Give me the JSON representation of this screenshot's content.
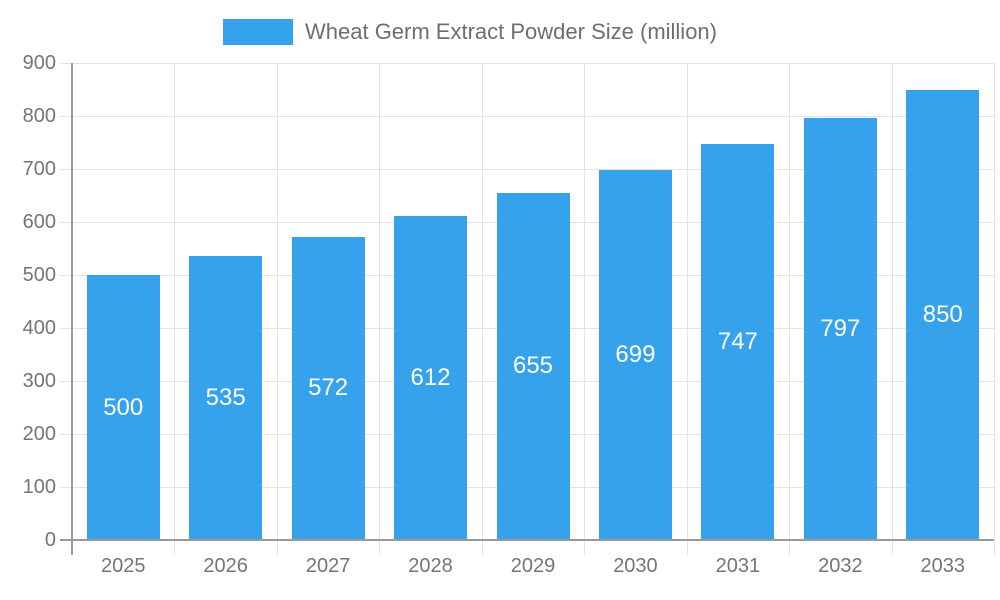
{
  "legend": {
    "label": "Wheat Germ Extract Powder Size (million)"
  },
  "chart_data": {
    "type": "bar",
    "title": "Wheat Germ Extract Powder Size (million)",
    "series_name": "Wheat Germ Extract Powder Size (million)",
    "categories": [
      "2025",
      "2026",
      "2027",
      "2028",
      "2029",
      "2030",
      "2031",
      "2032",
      "2033"
    ],
    "values": [
      500,
      535,
      572,
      612,
      655,
      699,
      747,
      797,
      850
    ],
    "value_labels": [
      "500",
      "535",
      "572",
      "612",
      "655",
      "699",
      "747",
      "797",
      "850"
    ],
    "xlabel": "",
    "ylabel": "",
    "ylim": [
      0,
      900
    ],
    "ytick_step": 100,
    "yticks": [
      0,
      100,
      200,
      300,
      400,
      500,
      600,
      700,
      800,
      900
    ],
    "grid": true,
    "legend_position": "top",
    "colors": {
      "bar": "#36A2EB",
      "grid": "#E3E3E3",
      "axis": "#999999",
      "tick_label": "#757575",
      "legend_text": "#6E6E6E",
      "value_label": "#FFFFFF",
      "background": "#FFFFFF"
    }
  }
}
